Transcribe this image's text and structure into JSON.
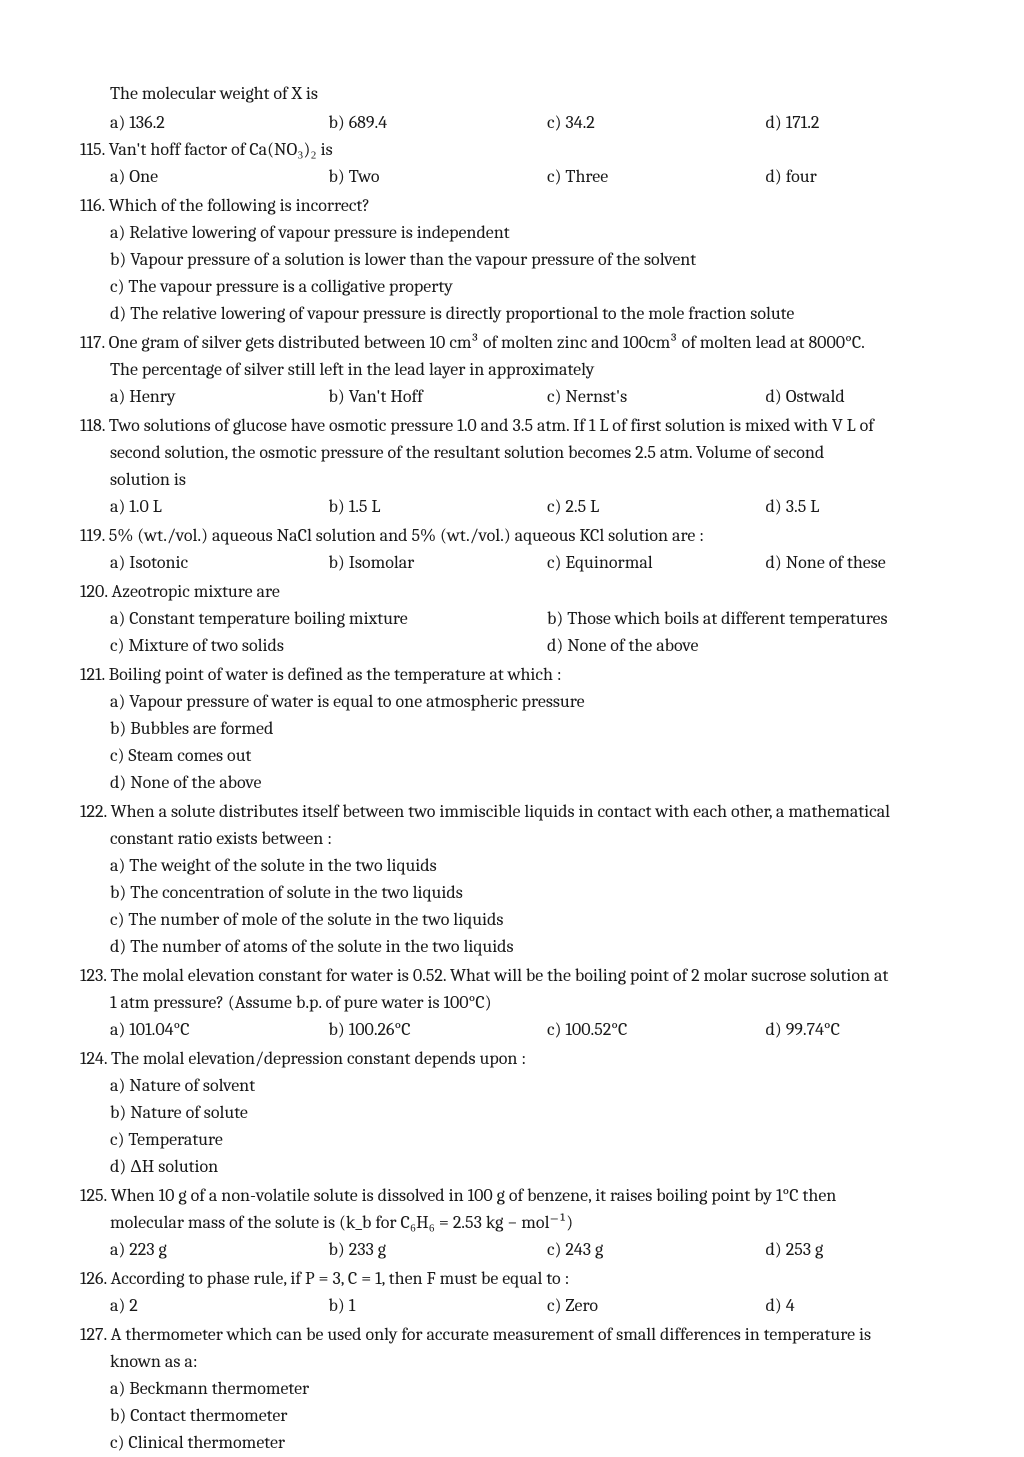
{
  "text_color": "#1a1a1a",
  "bg_color": "#ffffff",
  "font_family": "Cambria, Georgia, serif",
  "font_size_pt": 13,
  "intro": "The molecular weight of X is",
  "q114": {
    "a": "a) 136.2",
    "b": "b) 689.4",
    "c": "c) 34.2",
    "d": "d) 171.2"
  },
  "q115": {
    "num": "115.",
    "text": "Van't hoff factor of Ca(NO₃)₂  is",
    "a": "a) One",
    "b": "b) Two",
    "c": "c) Three",
    "d": "d) four"
  },
  "q116": {
    "num": "116.",
    "text": "Which of the following is incorrect?",
    "a": "a) Relative lowering of vapour pressure is independent",
    "b": "b) Vapour pressure of a solution is lower than the vapour pressure of the solvent",
    "c": "c) The vapour pressure is a colligative property",
    "d": "d) The relative lowering of vapour pressure is directly proportional to the mole fraction solute"
  },
  "q117": {
    "num": "117.",
    "text": "One gram of silver gets distributed between 10 cm³ of molten zinc and 100cm³ of molten lead at 8000°C.",
    "cont": "The percentage of silver still left in the lead layer in approximately",
    "a": "a) Henry",
    "b": "b) Van't Hoff",
    "c": "c) Nernst's",
    "d": "d) Ostwald"
  },
  "q118": {
    "num": "118.",
    "text": "Two solutions of glucose have osmotic pressure 1.0 and 3.5 atm. If 1 L of first solution is mixed with V L of",
    "cont1": "second solution, the osmotic pressure of the resultant solution becomes 2.5 atm. Volume of second",
    "cont2": "solution is",
    "a": "a) 1.0 L",
    "b": "b) 1.5 L",
    "c": "c) 2.5 L",
    "d": "d) 3.5 L"
  },
  "q119": {
    "num": "119.",
    "text": "5% (wt./vol.) aqueous NaCl solution and 5% (wt./vol.) aqueous KCl solution are :",
    "a": "a) Isotonic",
    "b": "b) Isomolar",
    "c": "c) Equinormal",
    "d": "d) None of these"
  },
  "q120": {
    "num": "120.",
    "text": "Azeotropic mixture are",
    "a": "a) Constant temperature boiling mixture",
    "b": "b) Those which boils at different temperatures",
    "c": "c) Mixture of two solids",
    "d": "d) None of the above"
  },
  "q121": {
    "num": "121.",
    "text": "Boiling point of water is defined as the temperature at which :",
    "a": "a) Vapour pressure of water is equal to one atmospheric pressure",
    "b": "b) Bubbles are formed",
    "c": "c) Steam comes out",
    "d": "d) None of the above"
  },
  "q122": {
    "num": "122.",
    "text": "When a solute distributes itself between two immiscible liquids in contact with each other, a mathematical",
    "cont": "constant ratio exists between :",
    "a": "a) The weight of the solute in the two liquids",
    "b": "b) The concentration of solute in the two liquids",
    "c": "c) The number of mole of the solute in the two liquids",
    "d": "d) The number of atoms of the solute in the two liquids"
  },
  "q123": {
    "num": "123.",
    "text": "The molal elevation constant for water is 0.52. What will be the boiling point of 2 molar sucrose solution at",
    "cont": "1 atm pressure? (Assume b.p. of pure water is 100°C)",
    "a": "a) 101.04°C",
    "b": "b) 100.26°C",
    "c": "c) 100.52°C",
    "d": "d) 99.74°C"
  },
  "q124": {
    "num": "124.",
    "text": "The molal elevation/depression constant depends upon :",
    "a": "a) Nature of solvent",
    "b": "b) Nature of solute",
    "c": "c) Temperature",
    "d": "d) ΔH solution"
  },
  "q125": {
    "num": "125.",
    "text": "When 10 g of a non-volatile solute is dissolved in 100 g of benzene, it raises boiling point by 1°C then",
    "cont": "molecular mass of the solute is (k_b for C₆H₆ = 2.53 kg − mol⁻¹)",
    "a": "a) 223 g",
    "b": "b) 233 g",
    "c": "c) 243 g",
    "d": "d) 253 g"
  },
  "q126": {
    "num": "126.",
    "text": "According to phase rule, if P = 3, C = 1, then F must be equal to :",
    "a": "a) 2",
    "b": "b) 1",
    "c": "c) Zero",
    "d": "d) 4"
  },
  "q127": {
    "num": "127.",
    "text": "A thermometer which can be used only for accurate measurement of small differences in temperature is",
    "cont": "known as a:",
    "a": "a) Beckmann thermometer",
    "b": "b) Contact thermometer",
    "c": "c) Clinical thermometer"
  }
}
